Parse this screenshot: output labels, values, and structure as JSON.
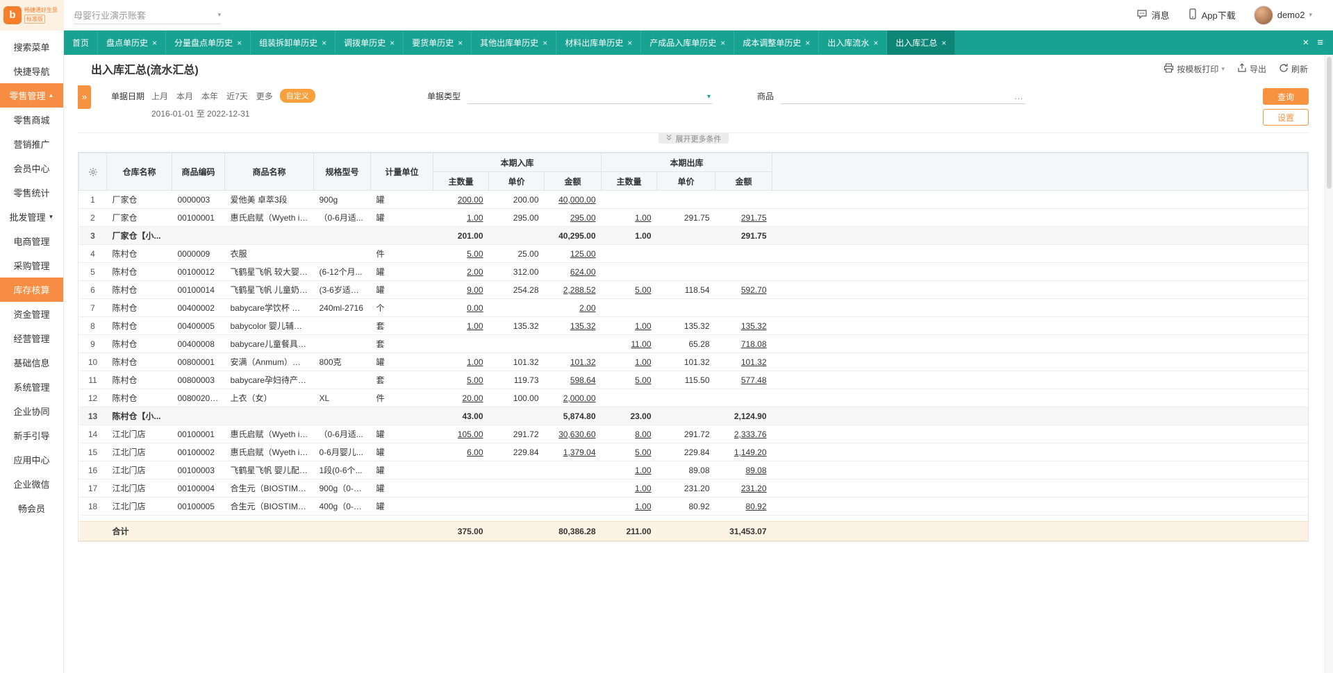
{
  "icons": {
    "close": "×",
    "caret_down": "▾",
    "caret_up_solid": "▲",
    "caret_down_solid": "▼",
    "menu": "≡",
    "collapse": "»",
    "ellipsis": "…"
  },
  "topbar": {
    "logo_title": "畅捷通好生意",
    "logo_subtitle": "标准版",
    "account_value": "母婴行业演示账套",
    "messages_label": "消息",
    "app_download_label": "App下载",
    "username": "demo2"
  },
  "tabbar": {
    "tabs": [
      {
        "label": "首页",
        "closable": false,
        "active": false
      },
      {
        "label": "盘点单历史",
        "closable": true,
        "active": false
      },
      {
        "label": "分量盘点单历史",
        "closable": true,
        "active": false
      },
      {
        "label": "组装拆卸单历史",
        "closable": true,
        "active": false
      },
      {
        "label": "调拨单历史",
        "closable": true,
        "active": false
      },
      {
        "label": "要货单历史",
        "closable": true,
        "active": false
      },
      {
        "label": "其他出库单历史",
        "closable": true,
        "active": false
      },
      {
        "label": "材料出库单历史",
        "closable": true,
        "active": false
      },
      {
        "label": "产成品入库单历史",
        "closable": true,
        "active": false
      },
      {
        "label": "成本调整单历史",
        "closable": true,
        "active": false
      },
      {
        "label": "出入库流水",
        "closable": true,
        "active": false
      },
      {
        "label": "出入库汇总",
        "closable": true,
        "active": true
      }
    ]
  },
  "sidebar": {
    "items": [
      {
        "label": "搜索菜单",
        "type": "plain"
      },
      {
        "label": "快捷导航",
        "type": "plain"
      },
      {
        "label": "零售管理",
        "type": "group-expanded"
      },
      {
        "label": "零售商城",
        "type": "sub"
      },
      {
        "label": "营销推广",
        "type": "sub"
      },
      {
        "label": "会员中心",
        "type": "sub"
      },
      {
        "label": "零售统计",
        "type": "sub"
      },
      {
        "label": "批发管理",
        "type": "group-collapsed"
      },
      {
        "label": "电商管理",
        "type": "plain"
      },
      {
        "label": "采购管理",
        "type": "plain"
      },
      {
        "label": "库存核算",
        "type": "active"
      },
      {
        "label": "资金管理",
        "type": "plain"
      },
      {
        "label": "经营管理",
        "type": "plain"
      },
      {
        "label": "基础信息",
        "type": "plain"
      },
      {
        "label": "系统管理",
        "type": "plain"
      },
      {
        "label": "企业协同",
        "type": "plain"
      },
      {
        "label": "新手引导",
        "type": "plain"
      },
      {
        "label": "应用中心",
        "type": "plain"
      },
      {
        "label": "企业微信",
        "type": "plain"
      },
      {
        "label": "畅会员",
        "type": "plain"
      }
    ]
  },
  "page": {
    "title": "出入库汇总(流水汇总)",
    "print_label": "按模板打印",
    "export_label": "导出",
    "refresh_label": "刷新"
  },
  "filters": {
    "date_label": "单据日期",
    "date_options": [
      "上月",
      "本月",
      "本年",
      "近7天",
      "更多"
    ],
    "custom_badge": "自定义",
    "date_range": "2016-01-01 至 2022-12-31",
    "doc_type_label": "单据类型",
    "product_label": "商品",
    "search_label": "查询",
    "settings_label": "设置",
    "expand_label": "展开更多条件"
  },
  "table": {
    "headers": {
      "warehouse": "仓库名称",
      "code": "商品编码",
      "name": "商品名称",
      "spec": "规格型号",
      "unit": "计量单位",
      "in_group": "本期入库",
      "out_group": "本期出库",
      "qty": "主数量",
      "price": "单价",
      "amount": "金额"
    },
    "rows": [
      {
        "idx": "1",
        "type": "normal",
        "warehouse": "厂家仓",
        "code": "0000003",
        "name": "爱他美 卓萃3段",
        "spec": "900g",
        "unit": "罐",
        "in_qty": "200.00",
        "in_price": "200.00",
        "in_amount": "40,000.00",
        "out_qty": "",
        "out_price": "",
        "out_amount": ""
      },
      {
        "idx": "2",
        "type": "normal",
        "warehouse": "厂家仓",
        "code": "00100001",
        "name": "惠氏启赋（Wyeth illu...",
        "spec": "（0-6月适...",
        "unit": "罐",
        "in_qty": "1.00",
        "in_price": "295.00",
        "in_amount": "295.00",
        "out_qty": "1.00",
        "out_price": "291.75",
        "out_amount": "291.75"
      },
      {
        "idx": "3",
        "type": "subtotal",
        "warehouse": "厂家仓【小...",
        "code": "",
        "name": "",
        "spec": "",
        "unit": "",
        "in_qty": "201.00",
        "in_price": "",
        "in_amount": "40,295.00",
        "out_qty": "1.00",
        "out_price": "",
        "out_amount": "291.75"
      },
      {
        "idx": "4",
        "type": "normal",
        "warehouse": "陈村仓",
        "code": "0000009",
        "name": "衣服",
        "spec": "",
        "unit": "件",
        "in_qty": "5.00",
        "in_price": "25.00",
        "in_amount": "125.00",
        "out_qty": "",
        "out_price": "",
        "out_amount": ""
      },
      {
        "idx": "5",
        "type": "normal",
        "warehouse": "陈村仓",
        "code": "00100012",
        "name": "飞鹤星飞帆 较大婴儿配...",
        "spec": "(6-12个月...",
        "unit": "罐",
        "in_qty": "2.00",
        "in_price": "312.00",
        "in_amount": "624.00",
        "out_qty": "",
        "out_price": "",
        "out_amount": ""
      },
      {
        "idx": "6",
        "type": "normal",
        "warehouse": "陈村仓",
        "code": "00100014",
        "name": "飞鹤星飞帆 儿童奶粉 4...",
        "spec": "(3-6岁适用)...",
        "unit": "罐",
        "in_qty": "9.00",
        "in_price": "254.28",
        "in_amount": "2,288.52",
        "out_qty": "5.00",
        "out_price": "118.54",
        "out_amount": "592.70"
      },
      {
        "idx": "7",
        "type": "normal",
        "warehouse": "陈村仓",
        "code": "00400002",
        "name": "babycare学饮杯 儿童...",
        "spec": "240ml-2716",
        "unit": "个",
        "in_qty": "0.00",
        "in_price": "",
        "in_amount": "2.00",
        "out_qty": "",
        "out_price": "",
        "out_amount": ""
      },
      {
        "idx": "8",
        "type": "normal",
        "warehouse": "陈村仓",
        "code": "00400005",
        "name": "babycolor 婴儿辅食机...",
        "spec": "",
        "unit": "套",
        "in_qty": "1.00",
        "in_price": "135.32",
        "in_amount": "135.32",
        "out_qty": "1.00",
        "out_price": "135.32",
        "out_amount": "135.32"
      },
      {
        "idx": "9",
        "type": "normal",
        "warehouse": "陈村仓",
        "code": "00400008",
        "name": "babycare儿童餐具 婴...",
        "spec": "",
        "unit": "套",
        "in_qty": "",
        "in_price": "",
        "in_amount": "",
        "out_qty": "11.00",
        "out_price": "65.28",
        "out_amount": "718.08"
      },
      {
        "idx": "10",
        "type": "normal",
        "warehouse": "陈村仓",
        "code": "00800001",
        "name": "安满（Anmum）智孕...",
        "spec": "800克",
        "unit": "罐",
        "in_qty": "1.00",
        "in_price": "101.32",
        "in_amount": "101.32",
        "out_qty": "1.00",
        "out_price": "101.32",
        "out_amount": "101.32"
      },
      {
        "idx": "11",
        "type": "normal",
        "warehouse": "陈村仓",
        "code": "00800003",
        "name": "babycare孕妇待产包 ...",
        "spec": "",
        "unit": "套",
        "in_qty": "5.00",
        "in_price": "119.73",
        "in_amount": "598.64",
        "out_qty": "5.00",
        "out_price": "115.50",
        "out_amount": "577.48"
      },
      {
        "idx": "12",
        "type": "normal",
        "warehouse": "陈村仓",
        "code": "008002000...",
        "name": "上衣（女）",
        "spec": "XL",
        "unit": "件",
        "in_qty": "20.00",
        "in_price": "100.00",
        "in_amount": "2,000.00",
        "out_qty": "",
        "out_price": "",
        "out_amount": ""
      },
      {
        "idx": "13",
        "type": "subtotal",
        "warehouse": "陈村仓【小...",
        "code": "",
        "name": "",
        "spec": "",
        "unit": "",
        "in_qty": "43.00",
        "in_price": "",
        "in_amount": "5,874.80",
        "out_qty": "23.00",
        "out_price": "",
        "out_amount": "2,124.90"
      },
      {
        "idx": "14",
        "type": "normal",
        "warehouse": "江北门店",
        "code": "00100001",
        "name": "惠氏启赋（Wyeth illu...",
        "spec": "（0-6月适...",
        "unit": "罐",
        "in_qty": "105.00",
        "in_price": "291.72",
        "in_amount": "30,630.60",
        "out_qty": "8.00",
        "out_price": "291.72",
        "out_amount": "2,333.76"
      },
      {
        "idx": "15",
        "type": "normal",
        "warehouse": "江北门店",
        "code": "00100002",
        "name": "惠氏启赋（Wyeth illu...",
        "spec": "0-6月婴儿...",
        "unit": "罐",
        "in_qty": "6.00",
        "in_price": "229.84",
        "in_amount": "1,379.04",
        "out_qty": "5.00",
        "out_price": "229.84",
        "out_amount": "1,149.20"
      },
      {
        "idx": "16",
        "type": "normal",
        "warehouse": "江北门店",
        "code": "00100003",
        "name": "飞鹤星飞帆 婴儿配方奶...",
        "spec": "1段(0-6个...",
        "unit": "罐",
        "in_qty": "",
        "in_price": "",
        "in_amount": "",
        "out_qty": "1.00",
        "out_price": "89.08",
        "out_amount": "89.08"
      },
      {
        "idx": "17",
        "type": "normal",
        "warehouse": "江北门店",
        "code": "00100004",
        "name": "合生元（BIOSTIME）...",
        "spec": "900g（0-6...",
        "unit": "罐",
        "in_qty": "",
        "in_price": "",
        "in_amount": "",
        "out_qty": "1.00",
        "out_price": "231.20",
        "out_amount": "231.20"
      },
      {
        "idx": "18",
        "type": "normal",
        "warehouse": "江北门店",
        "code": "00100005",
        "name": "合生元（BIOSTIME）...",
        "spec": "400g（0-6...",
        "unit": "罐",
        "in_qty": "",
        "in_price": "",
        "in_amount": "",
        "out_qty": "1.00",
        "out_price": "80.92",
        "out_amount": "80.92"
      }
    ],
    "total": {
      "label": "合计",
      "in_qty": "375.00",
      "in_amount": "80,386.28",
      "out_qty": "211.00",
      "out_amount": "31,453.07"
    }
  }
}
